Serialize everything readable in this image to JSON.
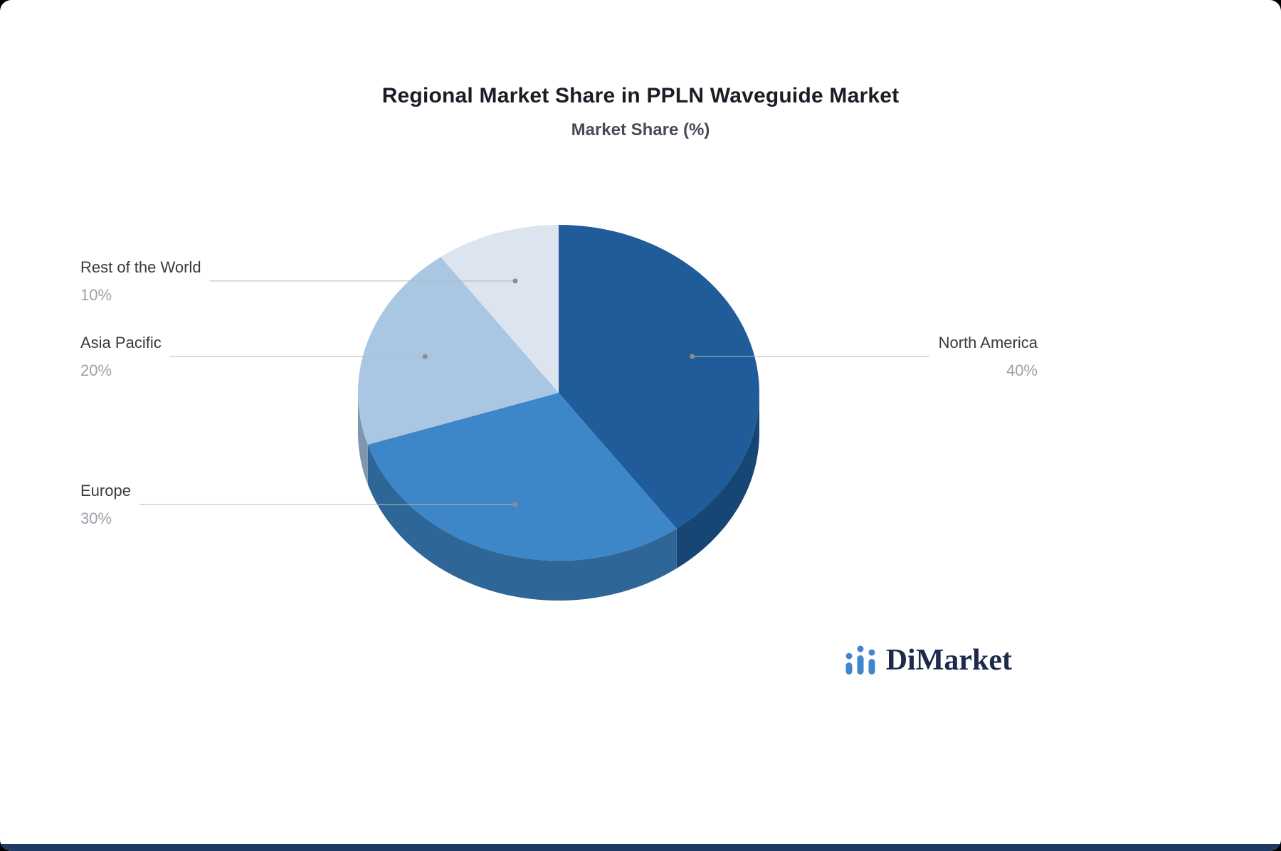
{
  "chart_data": {
    "type": "pie",
    "style": "3d",
    "title": "Regional Market Share in PPLN Waveguide Market",
    "subtitle": "Market Share (%)",
    "unit": "%",
    "total": 100,
    "direction": "clockwise",
    "start_angle_deg": 0,
    "legend_position": "callout-labels",
    "slices": [
      {
        "label": "North America",
        "value": 40,
        "color": "#1F5C99",
        "callout": "right"
      },
      {
        "label": "Europe",
        "value": 30,
        "color": "#3D86C8",
        "callout": "left"
      },
      {
        "label": "Asia Pacific",
        "value": 20,
        "color": "#A9C6E3",
        "callout": "left"
      },
      {
        "label": "Rest of the World",
        "value": 10,
        "color": "#DCE4F0",
        "callout": "left"
      }
    ]
  },
  "branding": {
    "logo_text": "DiMarket",
    "logo_icon": "bar-chart-icon",
    "icon_color": "#3F86CC",
    "text_color": "#1E2A4C"
  },
  "footer": {
    "bar_color": "#1D3A63"
  }
}
